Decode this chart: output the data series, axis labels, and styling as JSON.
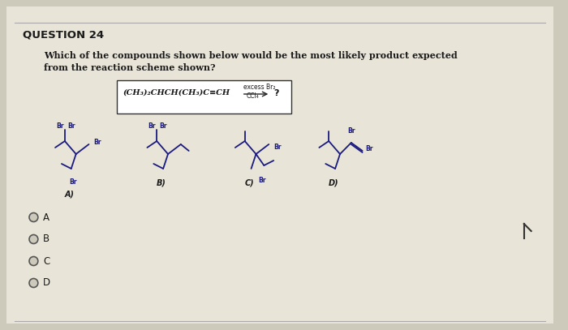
{
  "title": "QUESTION 24",
  "question_line1": "Which of the compounds shown below would be the most likely product expected",
  "question_line2": "from the reaction scheme shown?",
  "reaction_reactant": "(CH₃)₂CHCH(CH₃)C≡CH",
  "reaction_reagent_top": "excess Br₂",
  "reaction_reagent_bottom": "CCl₄",
  "reaction_product": "?",
  "choices": [
    "A)",
    "B)",
    "C)",
    "D)"
  ],
  "answer_choices": [
    "A",
    "B",
    "C",
    "D"
  ],
  "bg_color": "#cdc9bb",
  "box_bg": "#ffffff",
  "text_color": "#1a1a1a",
  "dark_color": "#1a1a1a",
  "structure_color": "#1a1a80",
  "label_color": "#1a1a80",
  "circle_color": "#555555"
}
